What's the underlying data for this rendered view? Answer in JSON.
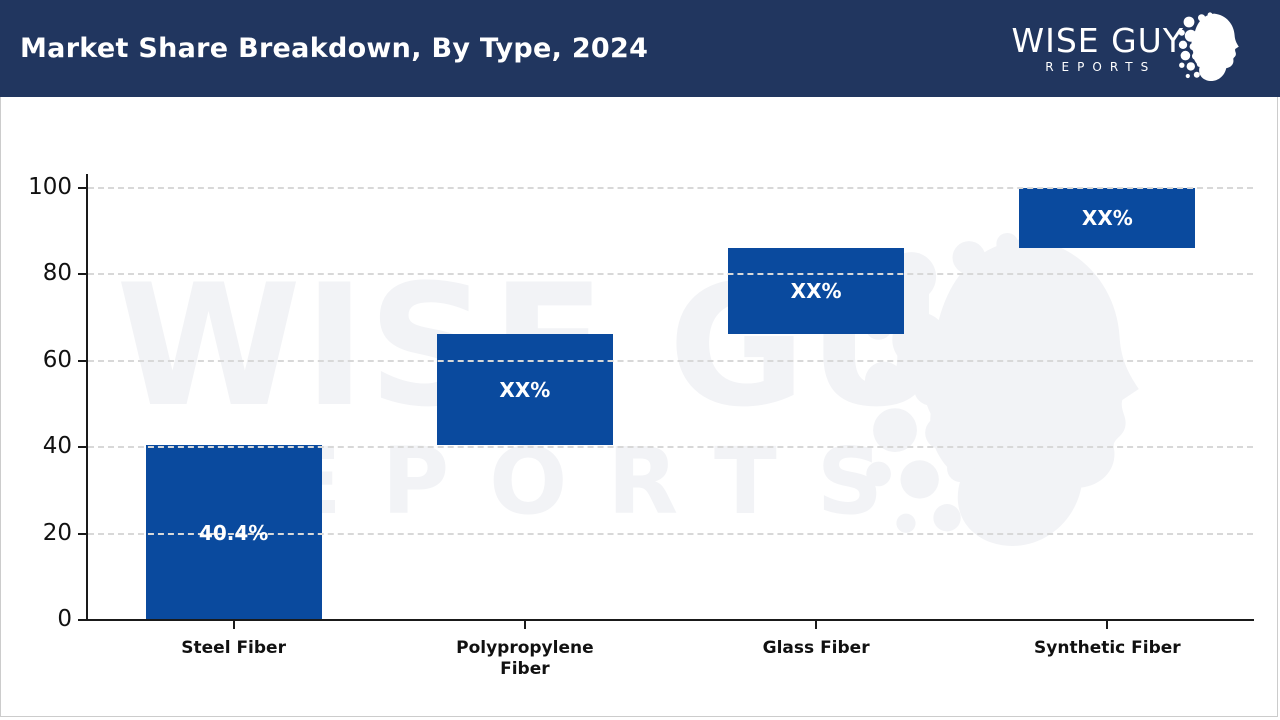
{
  "header": {
    "title": "Market Share Breakdown, By Type, 2024",
    "logo": {
      "line1": "WISE GUY",
      "line2": "REPORTS"
    }
  },
  "watermark": {
    "line1": "WISE GU",
    "line2": "REPORTS"
  },
  "colors": {
    "header_bg": "#21365f",
    "bar": "#0a4a9e",
    "grid": "#d8d8d8",
    "axis": "#1a1a1a",
    "watermark": "#f2f3f6",
    "frame_border": "#cccccc"
  },
  "chart_data": {
    "type": "bar",
    "subtype": "floating-stacked-waterfall",
    "title": "Market Share Breakdown, By Type, 2024",
    "categories": [
      "Steel Fiber",
      "Polypropylene Fiber",
      "Glass Fiber",
      "Synthetic Fiber"
    ],
    "segments": [
      {
        "category": "Steel Fiber",
        "start": 0,
        "end": 40.4,
        "label": "40.4%"
      },
      {
        "category": "Polypropylene Fiber",
        "start": 40.4,
        "end": 66.3,
        "label": "XX%"
      },
      {
        "category": "Glass Fiber",
        "start": 66.3,
        "end": 86.2,
        "label": "XX%"
      },
      {
        "category": "Synthetic Fiber",
        "start": 86.2,
        "end": 100,
        "label": "XX%"
      }
    ],
    "xlabel": "",
    "ylabel": "",
    "ylim": [
      0,
      100
    ],
    "yticks": [
      0,
      20,
      40,
      60,
      80,
      100
    ],
    "grid": {
      "axis": "y",
      "style": "dashed",
      "above_bars": true
    },
    "bar_color": "#0a4a9e",
    "bar_label_color": "#ffffff",
    "legend": "none"
  }
}
